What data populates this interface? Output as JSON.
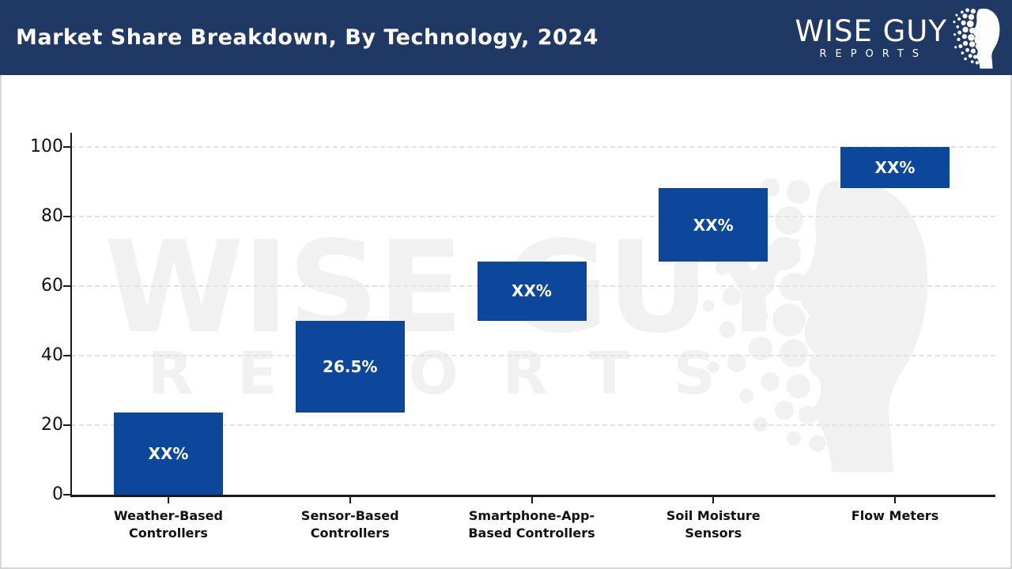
{
  "header": {
    "title": "Market Share Breakdown, By Technology, 2024",
    "bg_color": "#1f3864",
    "logo": {
      "line1": "WISE GUY",
      "line2": "REPORTS"
    }
  },
  "watermark": {
    "line1": "WISE GUY",
    "line2": "REPORTS"
  },
  "chart_data": {
    "type": "bar",
    "subtype": "waterfall",
    "title": "Market Share Breakdown, By Technology, 2024",
    "xlabel": "",
    "ylabel": "",
    "ylim": [
      0,
      105
    ],
    "y_ticks": [
      0,
      20,
      40,
      60,
      80,
      100
    ],
    "grid": "horizontal-dashed",
    "legend": false,
    "bar_color": "#0d479c",
    "categories": [
      "Weather-Based\nControllers",
      "Sensor-Based\nControllers",
      "Smartphone-App-\nBased Controllers",
      "Soil Moisture\nSensors",
      "Flow Meters"
    ],
    "values": [
      23.6,
      26.5,
      16.9,
      21.2,
      11.8
    ],
    "bars": [
      {
        "category": "Weather-Based Controllers",
        "label": "XX%",
        "start": 0,
        "end": 23.6
      },
      {
        "category": "Sensor-Based Controllers",
        "label": "26.5%",
        "start": 23.6,
        "end": 50.1
      },
      {
        "category": "Smartphone-App-Based Controllers",
        "label": "XX%",
        "start": 50.1,
        "end": 67.0
      },
      {
        "category": "Soil Moisture Sensors",
        "label": "XX%",
        "start": 67.0,
        "end": 88.2
      },
      {
        "category": "Flow Meters",
        "label": "XX%",
        "start": 88.2,
        "end": 100
      }
    ]
  }
}
